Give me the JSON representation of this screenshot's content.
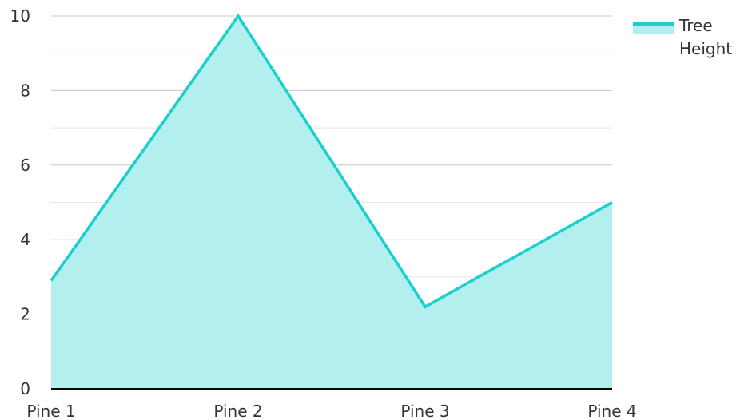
{
  "chart_data": {
    "type": "area",
    "categories": [
      "Pine 1",
      "Pine 2",
      "Pine 3",
      "Pine 4"
    ],
    "series": [
      {
        "name": "Tree Height",
        "values": [
          2.9,
          10,
          2.2,
          5
        ]
      }
    ],
    "ylim": [
      0,
      10
    ],
    "yticks": [
      0,
      2,
      4,
      6,
      8,
      10
    ],
    "grid": true,
    "legend_position": "top-right",
    "colors": {
      "line": "#1ccfcf",
      "fill": "#b3efee",
      "grid_major": "#c8c8c8",
      "grid_minor": "#e6e6e6",
      "axis": "#000000"
    }
  }
}
